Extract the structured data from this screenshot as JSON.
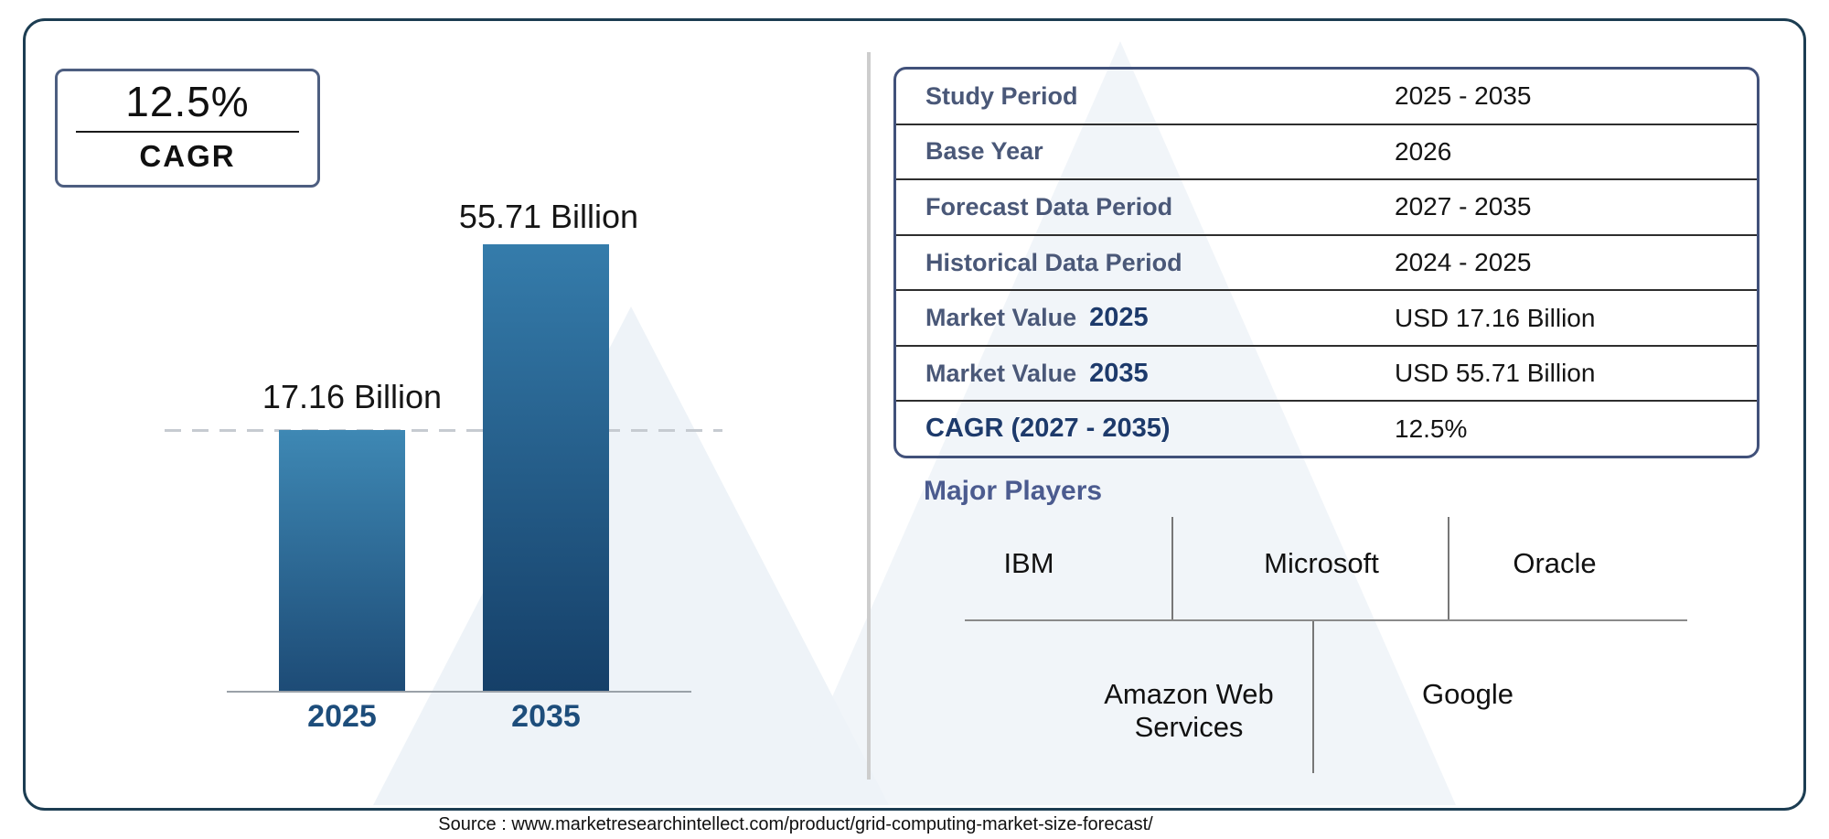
{
  "colors": {
    "card_border": "#1c3d52",
    "accent_navy": "#1d3a6b",
    "label_slate": "#4a5878",
    "axis_blue": "#1d4d7b",
    "bar_top": "#3e88b4",
    "bar_bottom": "#153f68",
    "watermark": "#eef3f8"
  },
  "cagr_box": {
    "value": "12.5%",
    "label": "CAGR"
  },
  "chart_data": {
    "type": "bar",
    "title": "",
    "xlabel": "",
    "ylabel": "",
    "categories": [
      "2025",
      "2035"
    ],
    "values": [
      17.16,
      55.71
    ],
    "unit": "USD Billion",
    "bar_labels": [
      "17.16 Billion",
      "55.71 Billion"
    ],
    "reference_line_value": 17.16,
    "grid": "off",
    "legend": "none"
  },
  "info_table": {
    "rows": [
      {
        "label": "Study Period",
        "label_bold": "",
        "value": "2025 - 2035"
      },
      {
        "label": "Base Year",
        "label_bold": "",
        "value": "2026"
      },
      {
        "label": "Forecast Data Period",
        "label_bold": "",
        "value": "2027 - 2035"
      },
      {
        "label": "Historical Data Period",
        "label_bold": "",
        "value": "2024 - 2025"
      },
      {
        "label": "Market Value",
        "label_bold": "2025",
        "value": "USD 17.16 Billion"
      },
      {
        "label": "Market Value",
        "label_bold": "2035",
        "value": "USD 55.71 Billion"
      },
      {
        "label": "",
        "label_bold": "CAGR (2027 - 2035)",
        "value": "12.5%"
      }
    ]
  },
  "major_players": {
    "heading": "Major Players",
    "row1": [
      "IBM",
      "Microsoft",
      "Oracle"
    ],
    "row2": [
      "Amazon Web Services",
      "Google"
    ]
  },
  "source": {
    "text": "Source : www.marketresearchintellect.com/product/grid-computing-market-size-forecast/"
  }
}
